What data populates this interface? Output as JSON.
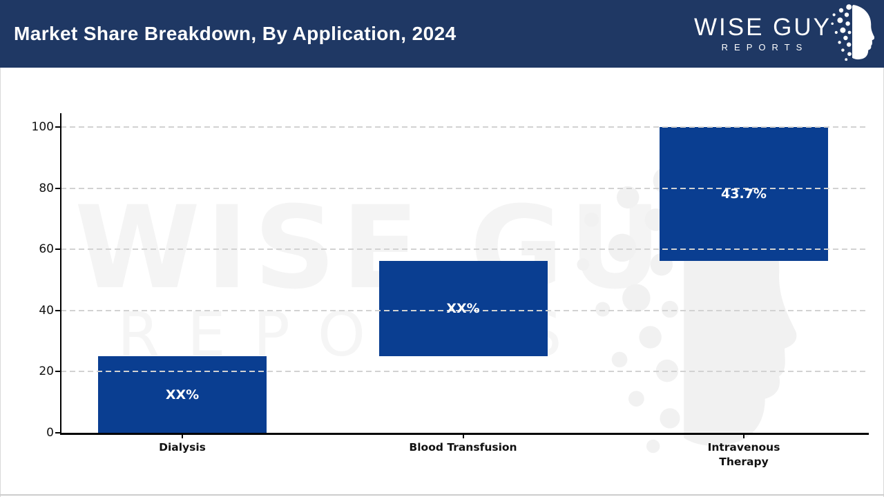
{
  "header": {
    "title": "Market Share Breakdown, By Application, 2024",
    "logo": {
      "line1": "WISE GUY",
      "line2": "REPORTS"
    }
  },
  "watermark": {
    "line1": "WISE GUY",
    "line2": "REPORTS"
  },
  "chart_data": {
    "type": "bar",
    "subtype": "floating-stacked-percentage",
    "title": "Market Share Breakdown, By Application, 2024",
    "categories": [
      "Dialysis",
      "Blood Transfusion",
      "Intravenous Therapy"
    ],
    "bars": [
      {
        "category_lines": [
          "Dialysis"
        ],
        "start": 0,
        "end": 25,
        "label": "XX%"
      },
      {
        "category_lines": [
          "Blood Transfusion"
        ],
        "start": 25,
        "end": 56.3,
        "label": "XX%"
      },
      {
        "category_lines": [
          "Intravenous",
          "Therapy"
        ],
        "start": 56.3,
        "end": 100,
        "label": "43.7%"
      }
    ],
    "ylim": [
      0,
      100
    ],
    "yticks": [
      0,
      20,
      40,
      60,
      80,
      100
    ],
    "xlabel": "",
    "ylabel": "",
    "grid": "horizontal-dashed",
    "legend": "none",
    "bar_color": "#0a3e91",
    "bar_label_color": "#ffffff"
  },
  "colors": {
    "header_bg": "#1f3864",
    "bar": "#0a3e91",
    "grid": "#d2d2d2",
    "axis": "#000000",
    "watermark": "#f3f3f3"
  }
}
